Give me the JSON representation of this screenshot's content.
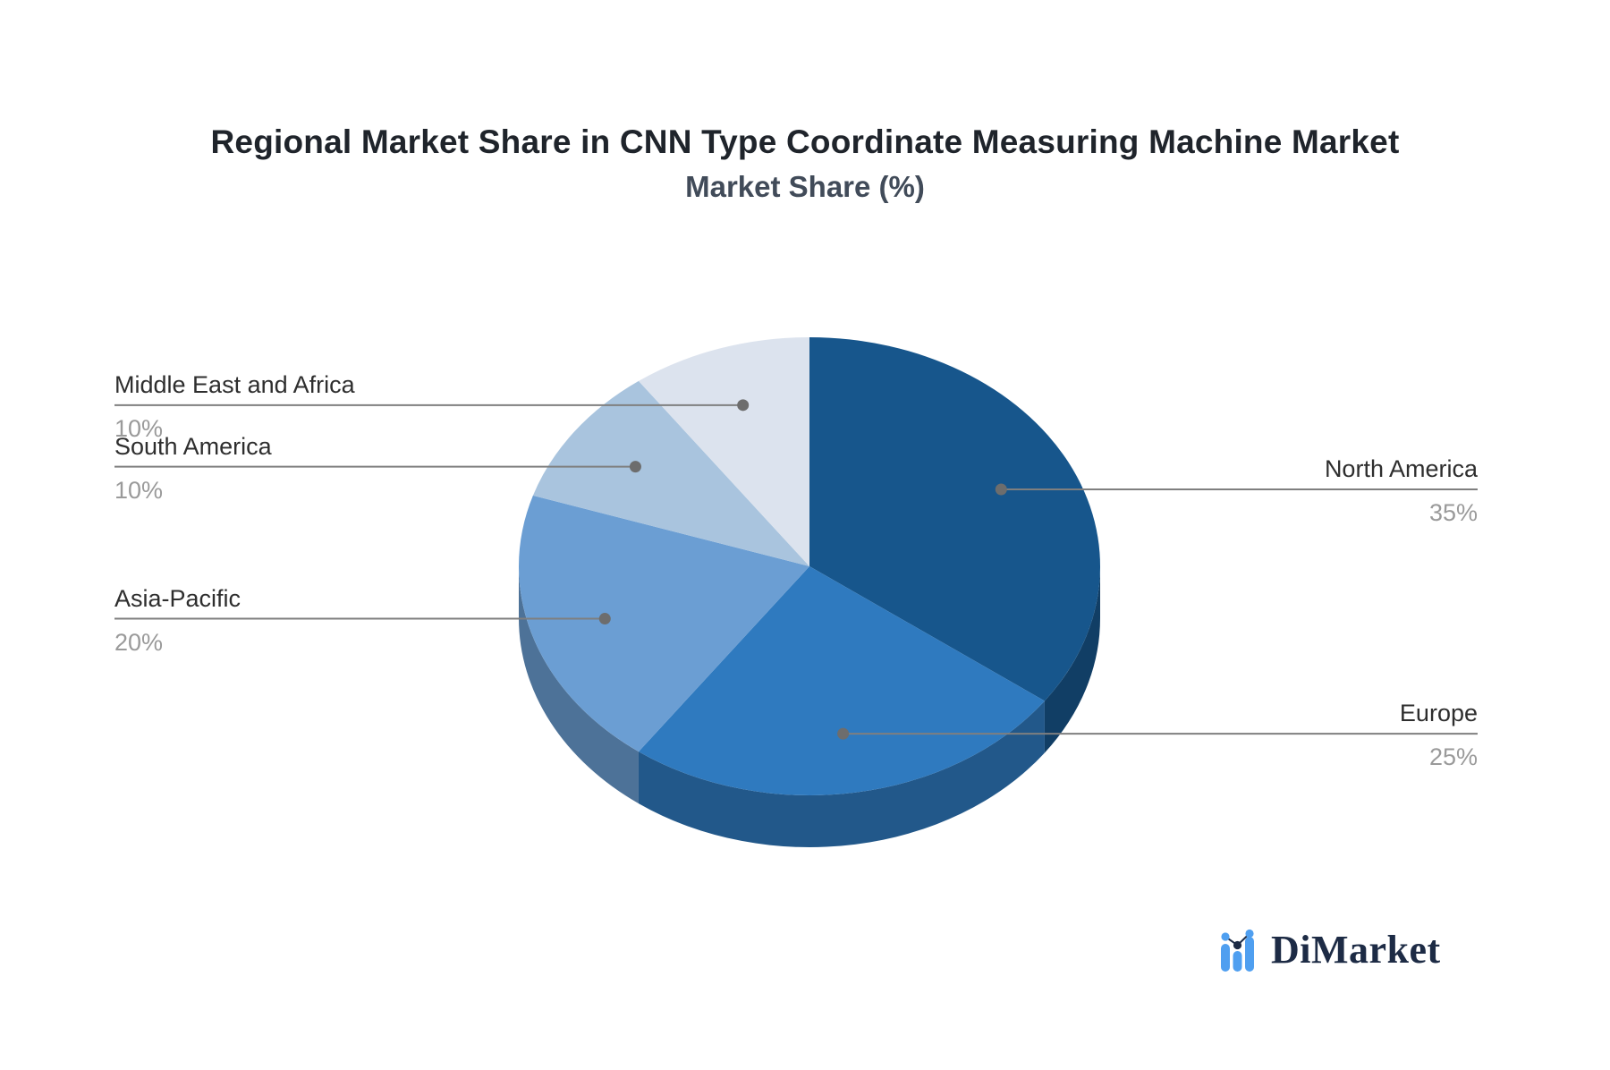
{
  "title": "Regional Market Share in CNN Type Coordinate Measuring Machine Market",
  "subtitle": "Market Share (%)",
  "chart_data": {
    "type": "pie",
    "style": "3d",
    "title": "Regional Market Share in CNN Type Coordinate Measuring Machine Market",
    "subtitle": "Market Share (%)",
    "unit": "%",
    "direction": "clockwise",
    "start_angle_deg": 0,
    "slices": [
      {
        "name": "North America",
        "value": 35,
        "pct": "35%",
        "color": "#17568C"
      },
      {
        "name": "Europe",
        "value": 25,
        "pct": "25%",
        "color": "#2F7ABF"
      },
      {
        "name": "Asia-Pacific",
        "value": 20,
        "pct": "20%",
        "color": "#6B9ED3"
      },
      {
        "name": "South America",
        "value": 10,
        "pct": "10%",
        "color": "#A9C4DE"
      },
      {
        "name": "Middle East and Africa",
        "value": 10,
        "pct": "10%",
        "color": "#DCE3EE"
      }
    ],
    "leader_line_color": "#7F7F7F",
    "leader_dot_color": "#6D6D6D",
    "label_color": "#2E2E2E",
    "pct_color": "#9A9A9A",
    "legend": "none",
    "grid": "off"
  },
  "logo": {
    "text": "DiMarket",
    "icon": "bar-chart-logo-icon",
    "icon_color": "#4F9FF0",
    "dot_color": "#1D2B45",
    "text_color": "#1D2B45"
  }
}
